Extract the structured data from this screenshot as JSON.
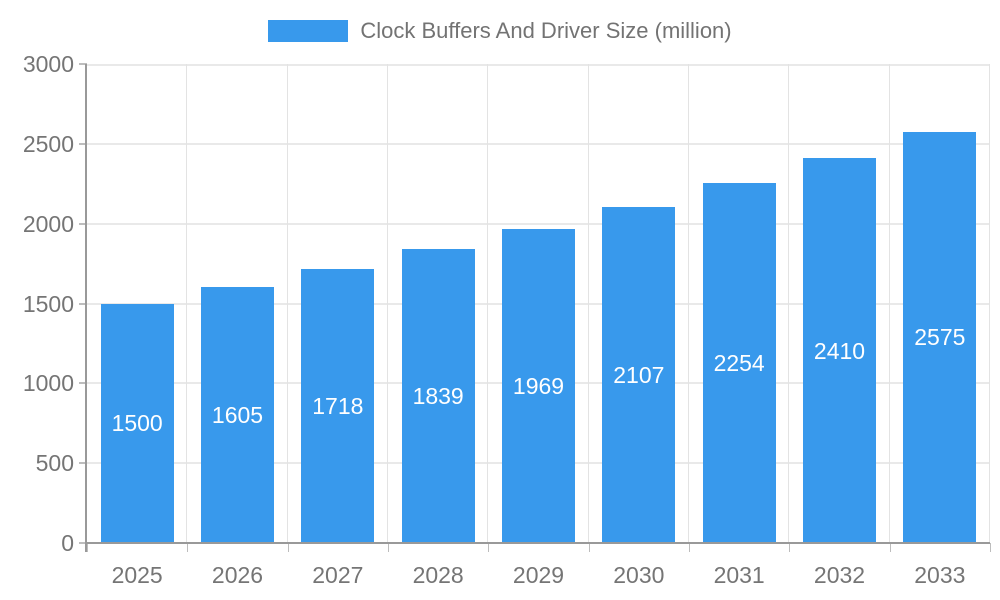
{
  "chart_data": {
    "type": "bar",
    "title": "Clock Buffers And Driver Size (million)",
    "legend": [
      "Clock Buffers And Driver Size (million)"
    ],
    "legend_position": "top",
    "categories": [
      "2025",
      "2026",
      "2027",
      "2028",
      "2029",
      "2030",
      "2031",
      "2032",
      "2033"
    ],
    "values": [
      1500,
      1605,
      1718,
      1839,
      1969,
      2107,
      2254,
      2410,
      2575
    ],
    "xlabel": "",
    "ylabel": "",
    "ylim": [
      0,
      3000
    ],
    "yticks": [
      0,
      500,
      1000,
      1500,
      2000,
      2500,
      3000
    ],
    "grid": true,
    "bar_value_labels_visible": true
  },
  "colors": {
    "bar": "#3899EC",
    "bar_label": "#FFFFFF",
    "axis_text": "#757575",
    "legend_text": "#737373",
    "grid_line_h": "#E9E9E9",
    "grid_line_v": "#E3E3E3",
    "axis_line": "#999999",
    "tick_mark": "#BDBDBD",
    "background": "#FFFFFF"
  }
}
